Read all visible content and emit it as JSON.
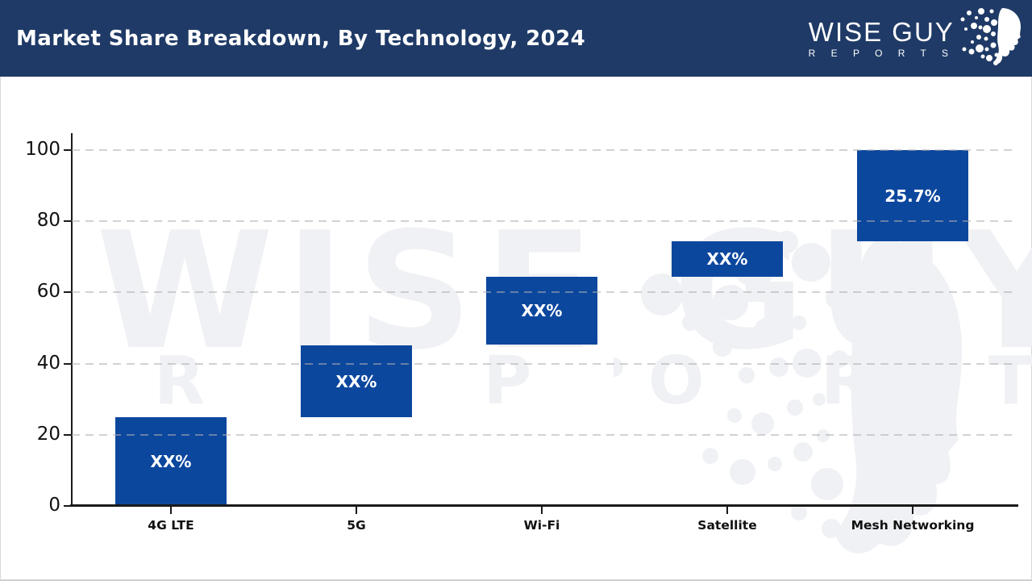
{
  "header": {
    "title": "Market Share Breakdown, By Technology, 2024",
    "logo": {
      "name_line": "WISE GUY",
      "reports_line": "R E P O R T S"
    }
  },
  "watermark": {
    "line1": "WISE GUY",
    "line2": "R E P O R T S"
  },
  "chart_data": {
    "type": "bar",
    "subtype": "waterfall",
    "title": "Market Share Breakdown, By Technology, 2024",
    "categories": [
      "4G LTE",
      "5G",
      "Wi-Fi",
      "Satellite",
      "Mesh Networking"
    ],
    "bars": [
      {
        "category": "4G LTE",
        "start": 0,
        "end": 24.9,
        "value": 24.9,
        "label": "XX%"
      },
      {
        "category": "5G",
        "start": 24.9,
        "end": 45.1,
        "value": 20.2,
        "label": "XX%"
      },
      {
        "category": "Wi-Fi",
        "start": 45.4,
        "end": 64.4,
        "value": 19.0,
        "label": "XX%"
      },
      {
        "category": "Satellite",
        "start": 64.4,
        "end": 74.4,
        "value": 10.0,
        "label": "XX%"
      },
      {
        "category": "Mesh Networking",
        "start": 74.3,
        "end": 100,
        "value": 25.7,
        "label": "25.7%"
      }
    ],
    "xlabel": "",
    "ylabel": "",
    "ylim": [
      0,
      100
    ],
    "yticks": [
      0,
      20,
      40,
      60,
      80,
      100
    ],
    "grid": "horizontal-dashed",
    "legend": null
  },
  "colors": {
    "header_bg": "#1f3a66",
    "bar": "#0c479e",
    "bar_label": "#ffffff",
    "axis": "#1a1a1a",
    "grid": "#cccccc",
    "watermark": "#f0f1f4"
  }
}
